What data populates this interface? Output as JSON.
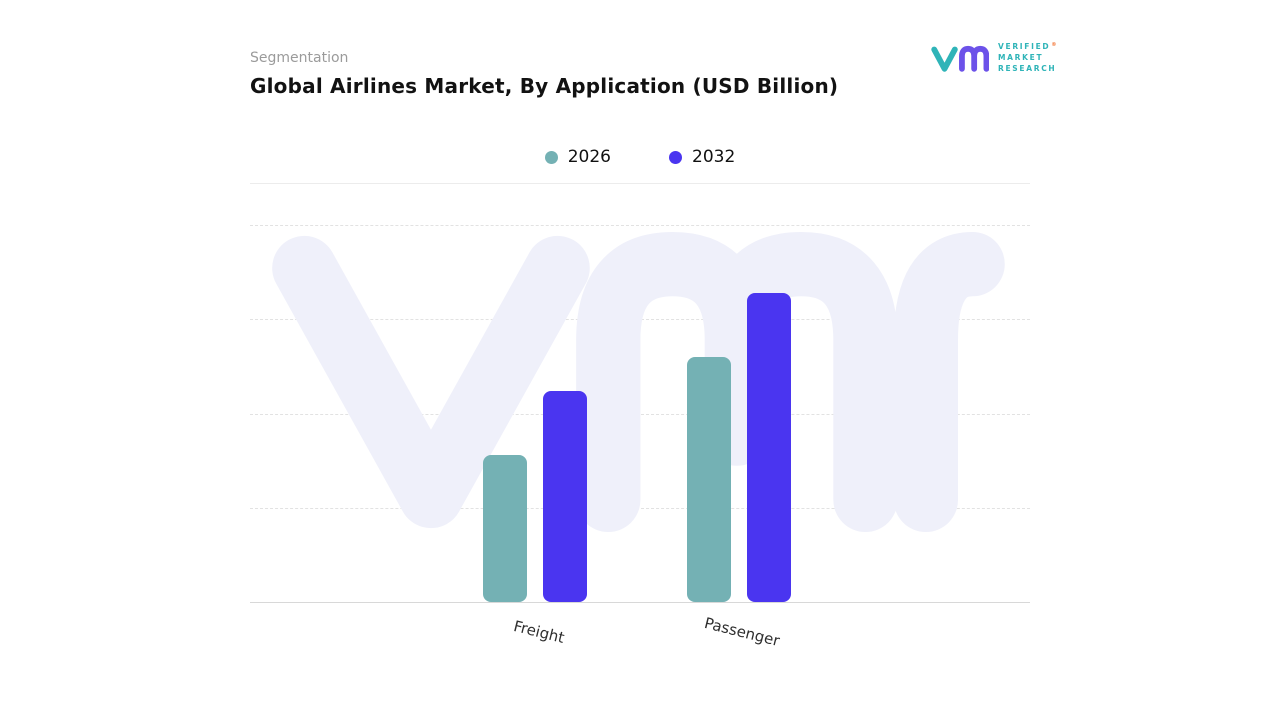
{
  "header": {
    "eyebrow": "Segmentation",
    "title": "Global Airlines Market, By Application (USD Billion)"
  },
  "logo": {
    "line1": "VERIFIED",
    "line2": "MARKET",
    "line3": "RESEARCH",
    "registered": "®",
    "teal": "#2fb4b8",
    "purple": "#6c52e9"
  },
  "chart_data": {
    "type": "bar",
    "title": "Global Airlines Market, By Application (USD Billion)",
    "categories": [
      "Freight",
      "Passenger"
    ],
    "series": [
      {
        "name": "2026",
        "color": "#74b1b4",
        "values": [
          39,
          65
        ]
      },
      {
        "name": "2032",
        "color": "#4a35f0",
        "values": [
          56,
          82
        ]
      }
    ],
    "ylim": [
      0,
      100
    ],
    "y_axis_labels_visible": false,
    "value_note": "y-axis unlabeled; values estimated from relative bar heights (arbitrary 0-100 scale)",
    "grid": "horizontal-dashed",
    "legend_position": "top-center",
    "watermark": "vmr"
  }
}
